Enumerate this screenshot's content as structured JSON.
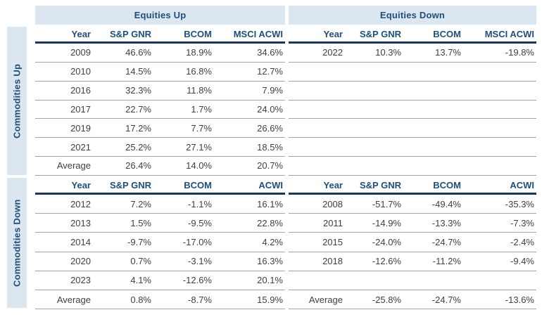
{
  "column_bands": [
    {
      "label": "Equities Up"
    },
    {
      "label": "Equities Down"
    }
  ],
  "row_bands": [
    {
      "label": "Commodities Up"
    },
    {
      "label": "Commodities Down"
    }
  ],
  "colors": {
    "band_background": "#dce6f1",
    "header_text": "#1f4e79",
    "header_rule": "#17375d",
    "row_rule": "#a6a6a6",
    "body_text": "#3f3f3f"
  },
  "tables": {
    "top_left": {
      "columns": [
        "Year",
        "S&P GNR",
        "BCOM",
        "MSCI ACWI"
      ],
      "rows": [
        [
          "2009",
          "46.6%",
          "18.9%",
          "34.6%"
        ],
        [
          "2010",
          "14.5%",
          "16.8%",
          "12.7%"
        ],
        [
          "2016",
          "32.3%",
          "11.8%",
          "7.9%"
        ],
        [
          "2017",
          "22.7%",
          "1.7%",
          "24.0%"
        ],
        [
          "2019",
          "17.2%",
          "7.7%",
          "26.6%"
        ],
        [
          "2021",
          "25.2%",
          "27.1%",
          "18.5%"
        ],
        [
          "Average",
          "26.4%",
          "14.0%",
          "20.7%"
        ]
      ]
    },
    "top_right": {
      "columns": [
        "Year",
        "S&P GNR",
        "BCOM",
        "MSCI ACWI"
      ],
      "rows": [
        [
          "2022",
          "10.3%",
          "13.7%",
          "-19.8%"
        ],
        [
          "",
          "",
          "",
          ""
        ],
        [
          "",
          "",
          "",
          ""
        ],
        [
          "",
          "",
          "",
          ""
        ],
        [
          "",
          "",
          "",
          ""
        ],
        [
          "",
          "",
          "",
          ""
        ],
        [
          "",
          "",
          "",
          ""
        ]
      ]
    },
    "bottom_left": {
      "columns": [
        "Year",
        "S&P GNR",
        "BCOM",
        "ACWI"
      ],
      "rows": [
        [
          "2012",
          "7.2%",
          "-1.1%",
          "16.1%"
        ],
        [
          "2013",
          "1.5%",
          "-9.5%",
          "22.8%"
        ],
        [
          "2014",
          "-9.7%",
          "-17.0%",
          "4.2%"
        ],
        [
          "2020",
          "0.7%",
          "-3.1%",
          "16.3%"
        ],
        [
          "2023",
          "4.1%",
          "-12.6%",
          "20.1%"
        ],
        [
          "Average",
          "0.8%",
          "-8.7%",
          "15.9%"
        ]
      ]
    },
    "bottom_right": {
      "columns": [
        "Year",
        "S&P GNR",
        "BCOM",
        "ACWI"
      ],
      "rows": [
        [
          "2008",
          "-51.7%",
          "-49.4%",
          "-35.3%"
        ],
        [
          "2011",
          "-14.9%",
          "-13.3%",
          "-7.3%"
        ],
        [
          "2015",
          "-24.0%",
          "-24.7%",
          "-2.4%"
        ],
        [
          "2018",
          "-12.6%",
          "-11.2%",
          "-9.4%"
        ],
        [
          "",
          "",
          "",
          ""
        ],
        [
          "Average",
          "-25.8%",
          "-24.7%",
          "-13.6%"
        ]
      ]
    }
  }
}
